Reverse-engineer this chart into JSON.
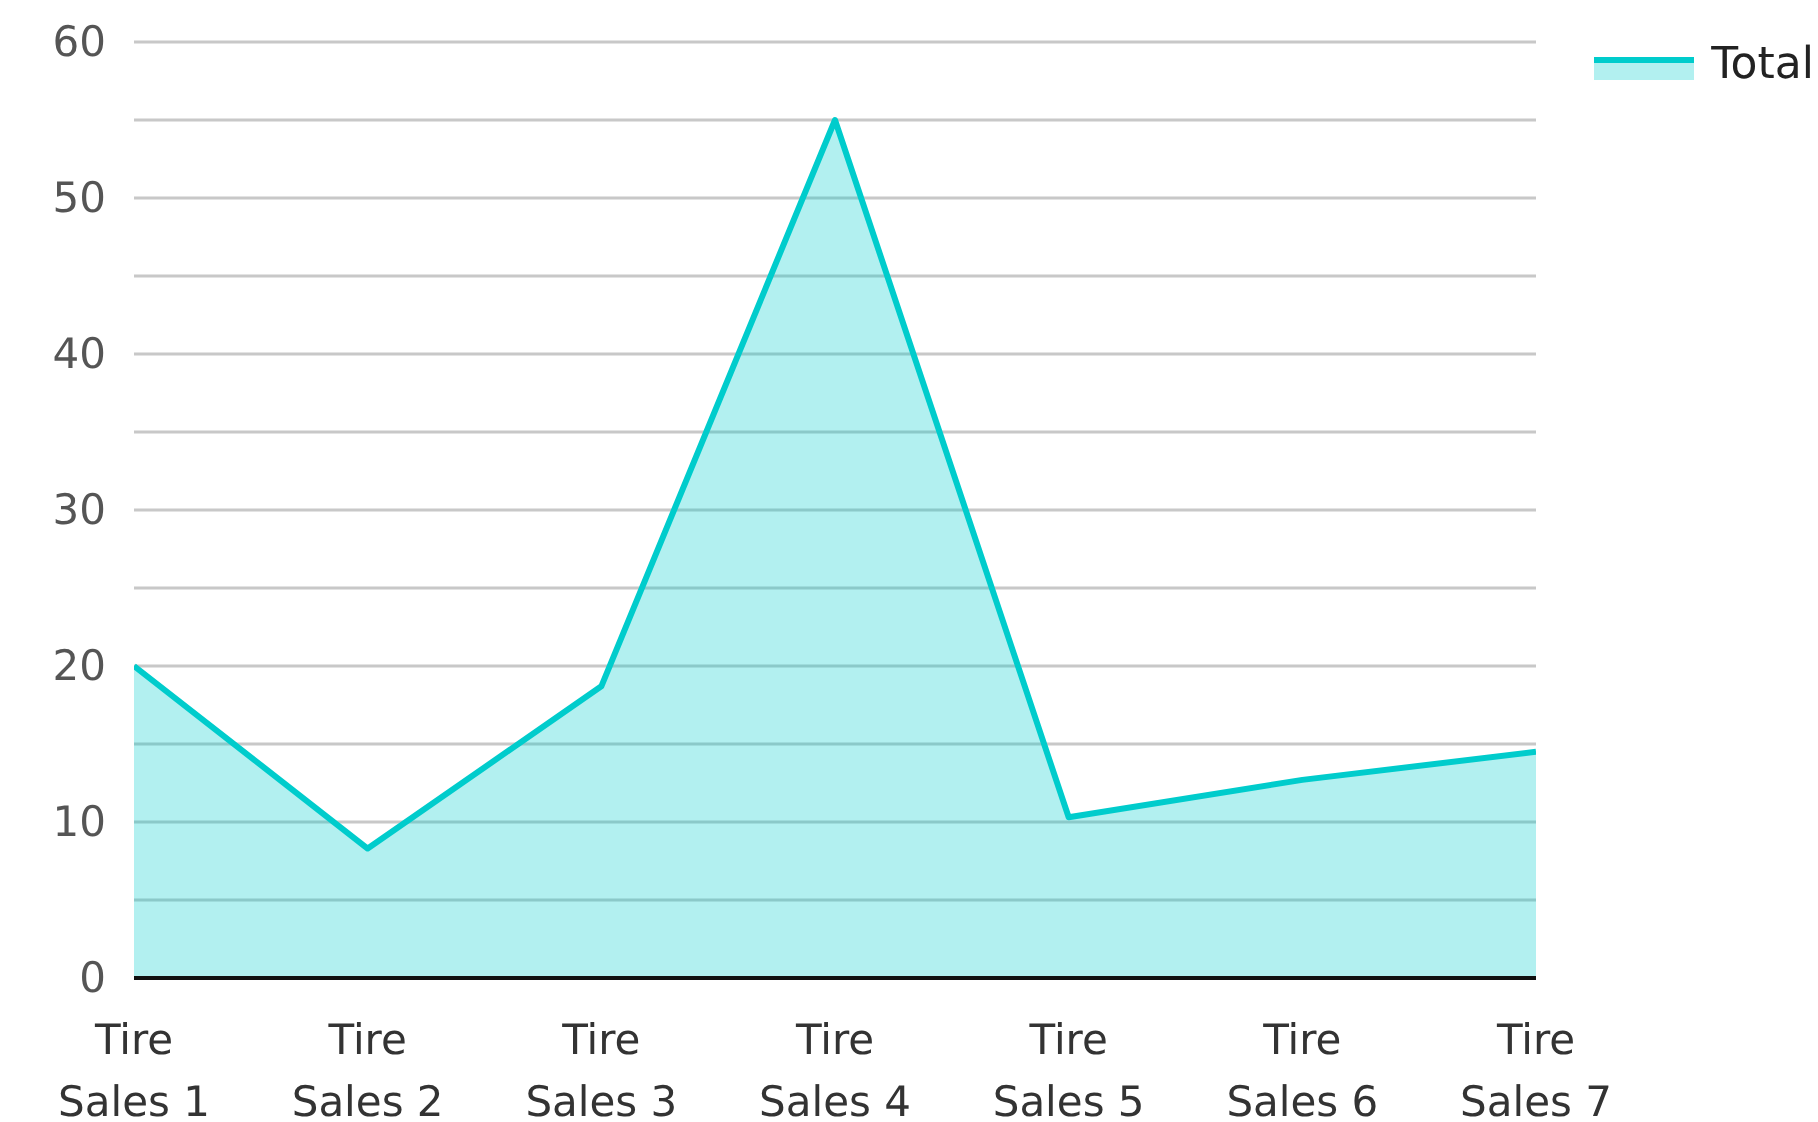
{
  "chart_data": {
    "type": "area",
    "categories": [
      "Tire Sales 1",
      "Tire Sales 2",
      "Tire Sales 3",
      "Tire Sales 4",
      "Tire Sales 5",
      "Tire Sales 6",
      "Tire Sales 7"
    ],
    "series": [
      {
        "name": "Total",
        "color": "#00cccc",
        "values": [
          20,
          8.3,
          18.7,
          55,
          10.3,
          12.7,
          14.5
        ]
      }
    ],
    "ylim": [
      0,
      60
    ],
    "yticks": [
      0,
      {
        "value": 5,
        "label": null
      },
      10,
      {
        "value": 15,
        "label": null
      },
      20,
      {
        "value": 25,
        "label": null
      },
      30,
      {
        "value": 35,
        "label": null
      },
      40,
      {
        "value": 45,
        "label": null
      },
      50,
      {
        "value": 55,
        "label": null
      },
      60
    ],
    "grid": "y",
    "legend": "top right",
    "marker": "none",
    "line_style": "solid"
  }
}
